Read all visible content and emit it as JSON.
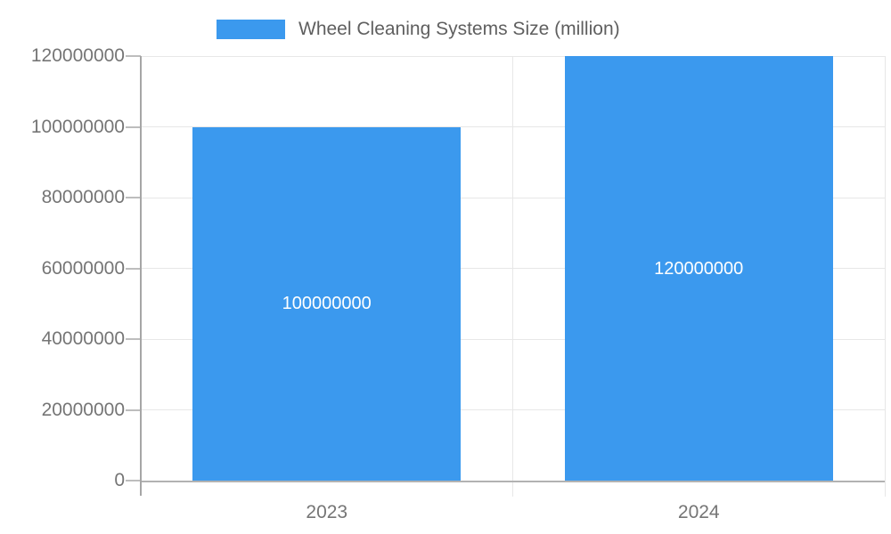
{
  "chart_data": {
    "type": "bar",
    "title": "Wheel Cleaning Systems Size (million)",
    "categories": [
      "2023",
      "2024"
    ],
    "values": [
      100000000,
      120000000
    ],
    "bar_labels": [
      "100000000",
      "120000000"
    ],
    "xlabel": "",
    "ylabel": "",
    "ylim": [
      0,
      120000000
    ],
    "ytick_interval": 20000000,
    "ytick_labels": [
      "0",
      "20000000",
      "40000000",
      "60000000",
      "80000000",
      "100000000",
      "120000000"
    ],
    "grid": true,
    "legend_position": "top",
    "colors": {
      "bar": "#3B99EE",
      "bar_label": "#FFFFFF",
      "axis_label": "#757575",
      "legend_text": "#5F5F5F",
      "gridline": "#E7E7E7",
      "axis_line": "#A6A6A6",
      "baseline": "#B2B2B2",
      "tick": "#BDBDBD",
      "background": "#FFFFFF"
    }
  }
}
